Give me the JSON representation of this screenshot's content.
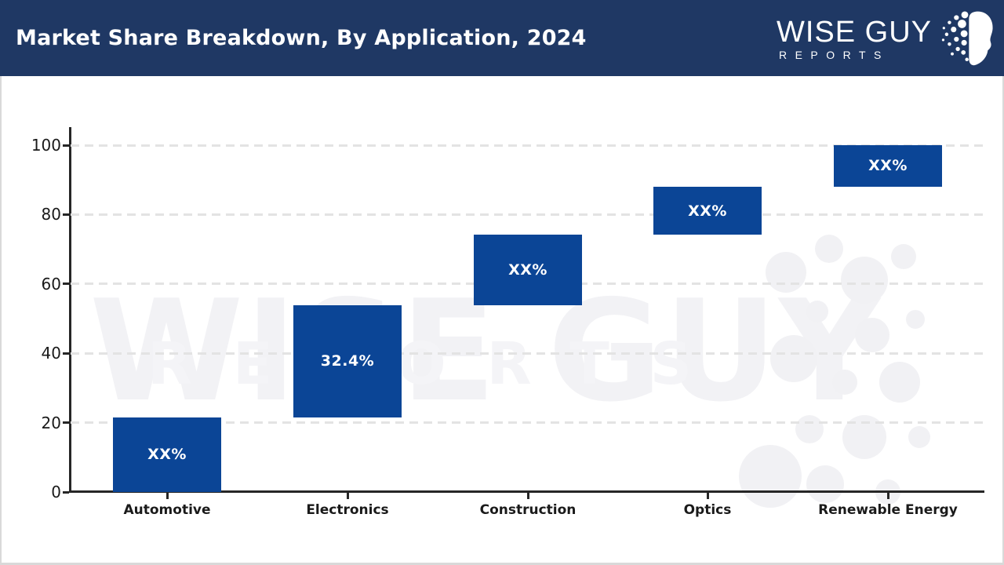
{
  "header": {
    "title": "Market Share Breakdown, By Application, 2024",
    "background_color": "#1F3864",
    "logo": {
      "brand_line1": "WISE GUY",
      "brand_line2": "REPORTS"
    }
  },
  "watermark": {
    "line1": "WISE GUY",
    "line2": "REPORTS"
  },
  "chart_data": {
    "type": "bar",
    "subtype": "waterfall",
    "title": "Market Share Breakdown, By Application, 2024",
    "categories": [
      "Automotive",
      "Electronics",
      "Construction",
      "Optics",
      "Renewable Energy"
    ],
    "segments": [
      {
        "category": "Automotive",
        "start": 0,
        "end": 21.5,
        "label": "XX%"
      },
      {
        "category": "Electronics",
        "start": 21.5,
        "end": 53.9,
        "label": "32.4%"
      },
      {
        "category": "Construction",
        "start": 53.9,
        "end": 74.1,
        "label": "XX%"
      },
      {
        "category": "Optics",
        "start": 74.1,
        "end": 88.1,
        "label": "XX%"
      },
      {
        "category": "Renewable Energy",
        "start": 88.1,
        "end": 100,
        "label": "XX%"
      }
    ],
    "y_ticks": [
      0,
      20,
      40,
      60,
      80,
      100
    ],
    "ylim": [
      0,
      105
    ],
    "xlabel": "",
    "ylabel": "",
    "grid": "horizontal-dashed",
    "legend": "none",
    "bar_color": "#0B4596",
    "bar_label_color": "#FFFFFF"
  }
}
